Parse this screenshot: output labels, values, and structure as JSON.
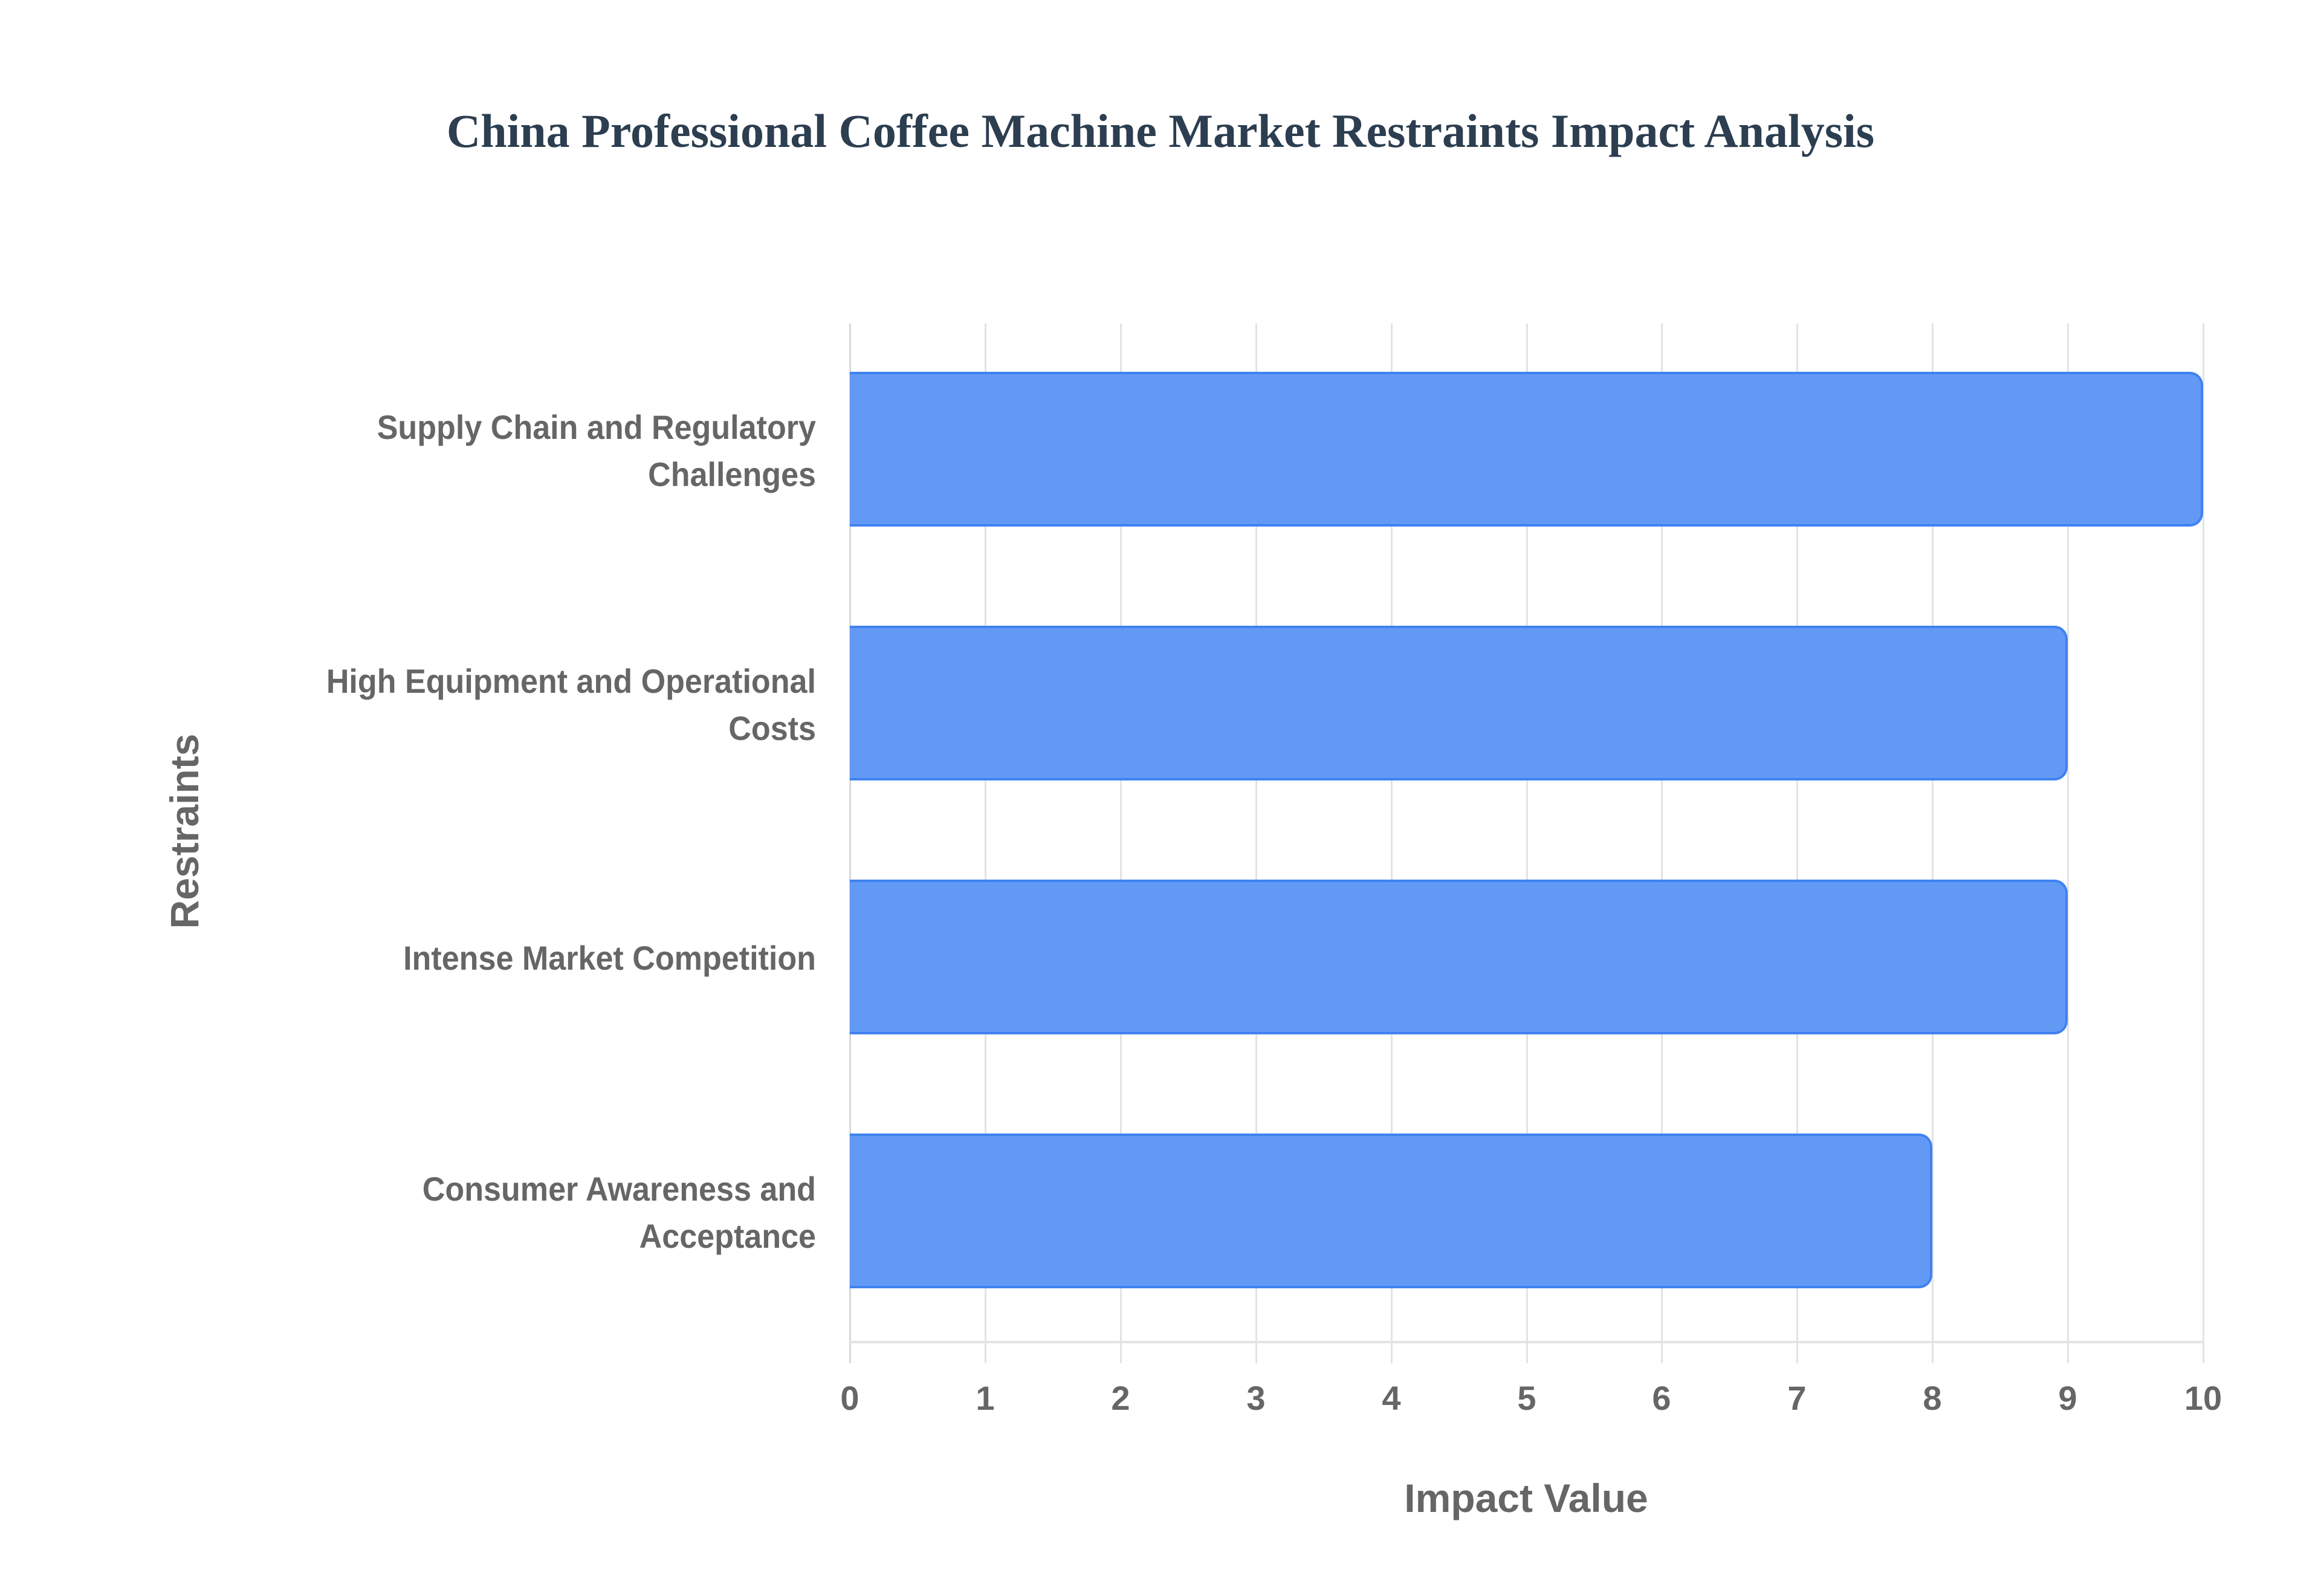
{
  "title": "China Professional Coffee Machine Market Restraints Impact Analysis",
  "colors": {
    "bar_fill": "#6299f5",
    "bar_border": "#3f82f0",
    "title": "#2c3e50",
    "axis_text": "#666666",
    "grid": "#e3e3e3"
  },
  "axes": {
    "x_title": "Impact Value",
    "y_title": "Restraints",
    "x_ticks": [
      "0",
      "1",
      "2",
      "3",
      "4",
      "5",
      "6",
      "7",
      "8",
      "9",
      "10"
    ]
  },
  "bars": [
    {
      "label_line1": "Supply Chain and Regulatory",
      "label_line2": "Challenges",
      "value": 10
    },
    {
      "label_line1": "High Equipment and Operational",
      "label_line2": "Costs",
      "value": 9
    },
    {
      "label_line1": "Intense Market Competition",
      "label_line2": "",
      "value": 9
    },
    {
      "label_line1": "Consumer Awareness and",
      "label_line2": "Acceptance",
      "value": 8
    }
  ],
  "chart_data": {
    "type": "bar",
    "orientation": "horizontal",
    "title": "China Professional Coffee Machine Market Restraints Impact Analysis",
    "categories": [
      "Supply Chain and Regulatory Challenges",
      "High Equipment and Operational Costs",
      "Intense Market Competition",
      "Consumer Awareness and Acceptance"
    ],
    "values": [
      10,
      9,
      9,
      8
    ],
    "xlabel": "Impact Value",
    "ylabel": "Restraints",
    "xlim": [
      0,
      10
    ],
    "x_ticks": [
      0,
      1,
      2,
      3,
      4,
      5,
      6,
      7,
      8,
      9,
      10
    ],
    "grid": true,
    "legend": null
  }
}
